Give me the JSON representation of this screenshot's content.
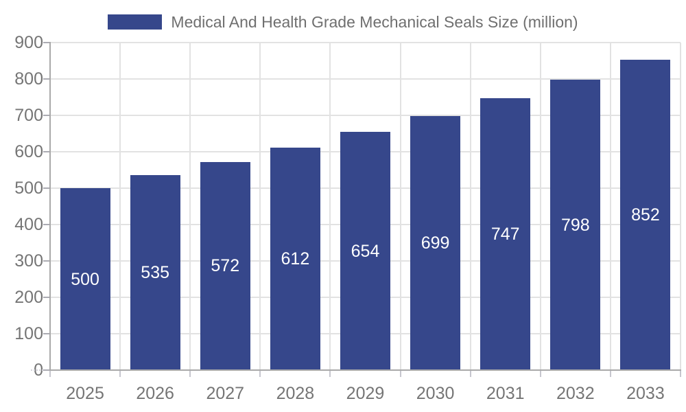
{
  "chart_data": {
    "type": "bar",
    "title": "Medical And Health Grade Mechanical Seals Size (million)",
    "legend_position": "top",
    "categories": [
      "2025",
      "2026",
      "2027",
      "2028",
      "2029",
      "2030",
      "2031",
      "2032",
      "2033"
    ],
    "series": [
      {
        "name": "Medical And Health Grade Mechanical Seals Size (million)",
        "values": [
          500,
          535,
          572,
          612,
          654,
          699,
          747,
          798,
          852
        ],
        "color": "#36478B",
        "value_label_position": "inside-center",
        "value_label_color": "#FFFFFF"
      }
    ],
    "xlabel": "",
    "ylabel": "",
    "ylim": [
      0,
      900
    ],
    "y_tick_step": 100,
    "y_tick_labels": [
      "0",
      "100",
      "200",
      "300",
      "400",
      "500",
      "600",
      "700",
      "800",
      "900"
    ],
    "grid": {
      "horizontal": true,
      "vertical": true,
      "color": "#E2E2E2"
    },
    "axis": {
      "line_color": "#A9A9A9",
      "label_color": "#757575"
    }
  }
}
